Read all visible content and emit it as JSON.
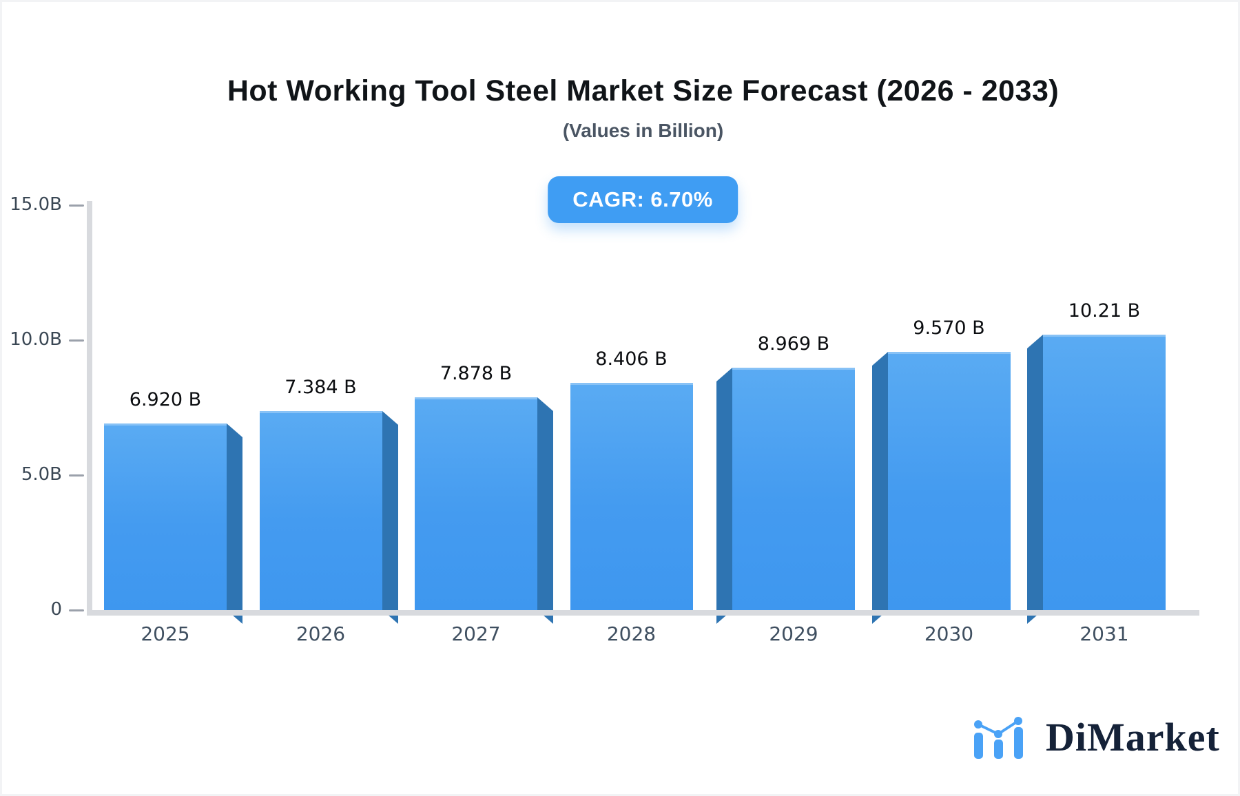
{
  "chart_data": {
    "type": "bar",
    "title": "Hot Working Tool Steel Market Size Forecast (2026 - 2033)",
    "subtitle": "(Values in Billion)",
    "annotation": "CAGR: 6.70%",
    "categories": [
      "2025",
      "2026",
      "2027",
      "2028",
      "2029",
      "2030",
      "2031"
    ],
    "values": [
      6.92,
      7.384,
      7.878,
      8.406,
      8.969,
      9.57,
      10.21
    ],
    "value_labels": [
      "6.920 B",
      "7.384 B",
      "7.878 B",
      "8.406 B",
      "8.969 B",
      "9.570 B",
      "10.21 B"
    ],
    "unit": "Billion",
    "ylim": [
      0,
      15
    ],
    "yticks": [
      {
        "value": 15,
        "label": "15.0B"
      },
      {
        "value": 10,
        "label": "10.0B"
      },
      {
        "value": 5,
        "label": "5.0B"
      },
      {
        "value": 0,
        "label": "0"
      }
    ],
    "grid": false,
    "legend": null,
    "bar_style": "3d-extruded"
  },
  "brand": {
    "name": "DiMarket",
    "icon": "bar-chart-logo-icon"
  },
  "colors": {
    "accent_badge": "#3f9df3",
    "bar_face_top": "#5aabf3",
    "bar_face_bottom": "#3e97ef",
    "bar_side": "#2e74b2",
    "axis": "#d8dade",
    "tick": "#9ba1ab",
    "ytick_label": "#3a4754",
    "xtick_label": "#3f4f60",
    "value_label": "#0b0d10",
    "title": "#101418",
    "subtitle": "#4a5563",
    "brand_text": "#152238",
    "brand_icon": "#4aa2f6"
  }
}
